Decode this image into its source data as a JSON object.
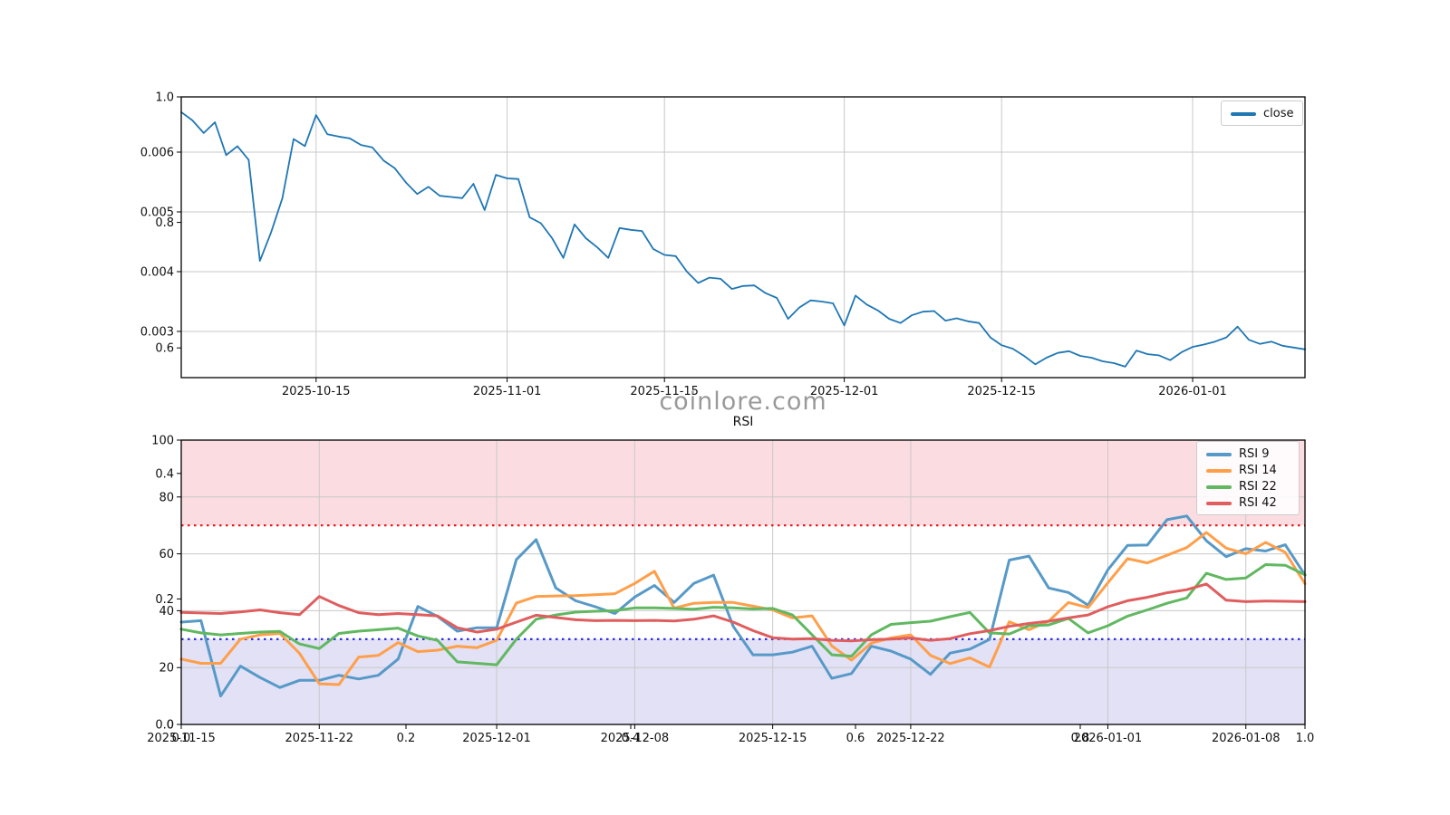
{
  "watermark": {
    "text": "coinlore.com",
    "color": "#8f8f8f"
  },
  "colors": {
    "grid": "#c9c9c9",
    "spine": "#000000",
    "tick_text": "#111111",
    "overbought_band": "#fbdce1",
    "oversold_band": "#e2e1f6",
    "overbought_line": "#ee1111",
    "oversold_line": "#2222dd"
  },
  "overlay_axis": {
    "x_tick_labels": [
      "0.0",
      "0.2",
      "0.4",
      "0.6",
      "0.8",
      "1.0"
    ],
    "y_tick_labels": [
      "0.0",
      "0.2",
      "0.4",
      "0.6",
      "0.8",
      "1.0"
    ]
  },
  "chart_data": [
    {
      "type": "line",
      "title": "",
      "x_tick_labels": [
        "2025-10-15",
        "2025-11-01",
        "2025-11-15",
        "2025-12-01",
        "2025-12-15",
        "2026-01-01"
      ],
      "x_tick_indices": [
        12,
        29,
        43,
        59,
        73,
        90
      ],
      "y_tick_labels": [
        "0.003",
        "0.004",
        "0.005",
        "0.006"
      ],
      "y_tick_values": [
        0.003,
        0.004,
        0.005,
        0.006
      ],
      "ylim": [
        0.002227,
        0.006924
      ],
      "grid": true,
      "legend_position": "upper right",
      "series": [
        {
          "name": "close",
          "color": "#1f77b4",
          "width": 1.8,
          "values": [
            0.00667,
            0.00653,
            0.00632,
            0.0065,
            0.00595,
            0.0061,
            0.00587,
            0.00418,
            0.00466,
            0.00523,
            0.00622,
            0.0061,
            0.00662,
            0.0063,
            0.00626,
            0.00623,
            0.00612,
            0.00608,
            0.00586,
            0.00573,
            0.00549,
            0.0053,
            0.00542,
            0.00527,
            0.00525,
            0.00523,
            0.00547,
            0.00503,
            0.00562,
            0.00556,
            0.00555,
            0.00491,
            0.00481,
            0.00456,
            0.00423,
            0.00479,
            0.00456,
            0.00441,
            0.00423,
            0.00473,
            0.0047,
            0.00468,
            0.00438,
            0.00428,
            0.00426,
            0.004,
            0.00381,
            0.0039,
            0.00388,
            0.00371,
            0.00376,
            0.00377,
            0.00364,
            0.00356,
            0.00321,
            0.0034,
            0.00352,
            0.0035,
            0.00347,
            0.0031,
            0.0036,
            0.00345,
            0.00335,
            0.00321,
            0.00314,
            0.00327,
            0.00333,
            0.00334,
            0.00318,
            0.00322,
            0.00317,
            0.00314,
            0.0029,
            0.00277,
            0.00271,
            0.00259,
            0.00245,
            0.00256,
            0.00264,
            0.00267,
            0.00259,
            0.00256,
            0.0025,
            0.00247,
            0.00241,
            0.00268,
            0.00262,
            0.0026,
            0.00252,
            0.00265,
            0.00274,
            0.00278,
            0.00283,
            0.0029,
            0.00308,
            0.00286,
            0.00279,
            0.00283,
            0.00276,
            0.00273,
            0.0027
          ]
        }
      ]
    },
    {
      "type": "line",
      "title": "RSI",
      "x_tick_labels": [
        "2025-11-15",
        "2025-11-22",
        "2025-12-01",
        "2025-12-08",
        "2025-12-15",
        "2025-12-22",
        "2026-01-01",
        "2026-01-08"
      ],
      "x_tick_indices": [
        0,
        7,
        16,
        23,
        30,
        37,
        47,
        54
      ],
      "y_tick_labels": [
        "0",
        "20",
        "40",
        "60",
        "80",
        "100"
      ],
      "y_tick_values": [
        0,
        20,
        40,
        60,
        80,
        100
      ],
      "ylim": [
        0,
        100
      ],
      "grid": true,
      "legend_position": "upper right",
      "hlines": [
        {
          "value": 70,
          "color": "#ee1111",
          "style": "dotted",
          "label": "overbought"
        },
        {
          "value": 30,
          "color": "#2222dd",
          "style": "dotted",
          "label": "oversold"
        }
      ],
      "bands": [
        {
          "from": 70,
          "to": 100,
          "color": "#fbdce1",
          "label": "overbought-zone"
        },
        {
          "from": 0,
          "to": 30,
          "color": "#e2e1f6",
          "label": "oversold-zone"
        }
      ],
      "series": [
        {
          "name": "RSI 9",
          "color": "#5799c7",
          "width": 3,
          "values": [
            36,
            36.5,
            10,
            20.5,
            16.5,
            13,
            15.5,
            15.5,
            17.3,
            16,
            17.3,
            23,
            41.5,
            38,
            32.8,
            34,
            34,
            58,
            65,
            48,
            43.5,
            41.4,
            39,
            44.8,
            48.9,
            42.9,
            49.6,
            52.5,
            34.5,
            24.5,
            24.5,
            25.4,
            27.5,
            16.2,
            17.9,
            27.5,
            25.8,
            23,
            17.6,
            25.1,
            26.5,
            29.9,
            57.8,
            59.2,
            48,
            46.4,
            41.9,
            54.4,
            63,
            63.1,
            72,
            73.3,
            64.6,
            59,
            61.8,
            61,
            63.2,
            52.5
          ]
        },
        {
          "name": "RSI 14",
          "color": "#ff9f4a",
          "width": 3,
          "values": [
            23,
            21.5,
            21.5,
            30,
            31.5,
            32,
            25,
            14.3,
            14,
            23.7,
            24.3,
            28.8,
            25.6,
            26.1,
            27.5,
            27,
            29.6,
            42.7,
            45,
            45.2,
            45.3,
            45.6,
            46,
            49.6,
            53.9,
            40.9,
            42.6,
            42.9,
            42.9,
            41.6,
            40.3,
            37.5,
            38.2,
            27.6,
            22.6,
            28.6,
            30.4,
            31.5,
            24.3,
            21.4,
            23.4,
            20.2,
            36.1,
            33.3,
            36.3,
            42.9,
            41.1,
            49.8,
            58.3,
            56.8,
            59.5,
            62.2,
            67.5,
            62,
            60,
            64,
            60.5,
            49.5
          ]
        },
        {
          "name": "RSI 22",
          "color": "#61b861",
          "width": 3,
          "values": [
            33.5,
            32.2,
            31.5,
            32,
            32.5,
            32.7,
            28.3,
            26.7,
            32,
            32.8,
            33.3,
            33.9,
            31.1,
            29.6,
            22,
            21.5,
            21,
            30,
            37,
            38.5,
            39.5,
            39.8,
            40,
            41,
            41,
            40.8,
            40.5,
            41.2,
            41,
            40.6,
            40.8,
            38.5,
            31.5,
            24.5,
            24,
            31.5,
            35.2,
            35.8,
            36.3,
            37.9,
            39.4,
            32.2,
            31.8,
            34.7,
            35,
            37.3,
            32.2,
            34.7,
            38.1,
            40.3,
            42.6,
            44.5,
            53.2,
            51,
            51.5,
            56.2,
            56,
            52.6
          ]
        },
        {
          "name": "RSI 42",
          "color": "#e05d5e",
          "width": 3,
          "values": [
            39.4,
            39.2,
            39,
            39.6,
            40.3,
            39.3,
            38.6,
            45,
            41.8,
            39.3,
            38.6,
            39,
            38.6,
            38.2,
            34,
            32.5,
            33.5,
            36,
            38.4,
            37.6,
            36.8,
            36.5,
            36.6,
            36.5,
            36.6,
            36.4,
            37,
            38.2,
            36,
            33,
            30.5,
            30,
            30.2,
            29.6,
            29.4,
            29.8,
            30,
            30.4,
            29.6,
            30.2,
            31.9,
            33,
            34.5,
            35.5,
            36.3,
            37.5,
            38.5,
            41.4,
            43.5,
            44.7,
            46.3,
            47.4,
            49.4,
            43.7,
            43.2,
            43.4,
            43.3,
            43.2
          ]
        }
      ]
    }
  ]
}
